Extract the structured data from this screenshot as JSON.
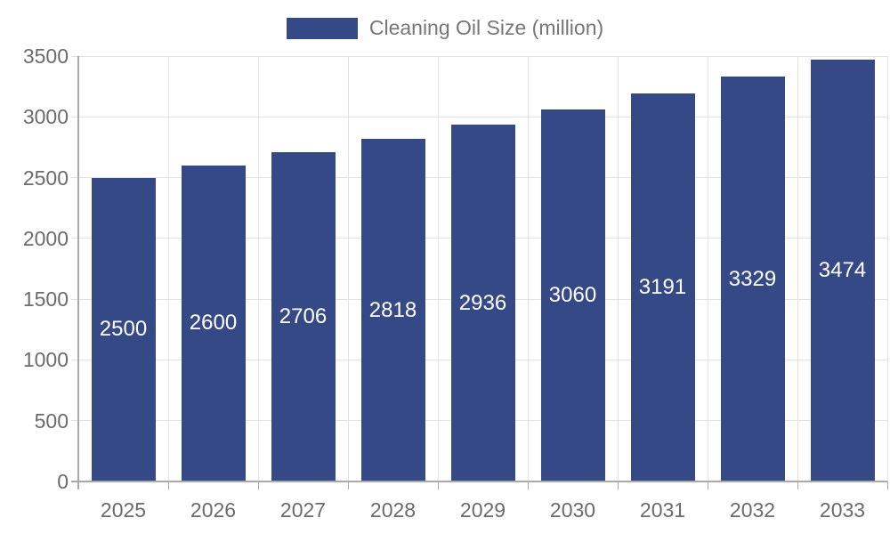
{
  "chart_data": {
    "type": "bar",
    "title": "Cleaning Oil Size (million)",
    "categories": [
      "2025",
      "2026",
      "2027",
      "2028",
      "2029",
      "2030",
      "2031",
      "2032",
      "2033"
    ],
    "values": [
      2500,
      2600,
      2706,
      2818,
      2936,
      3060,
      3191,
      3329,
      3474
    ],
    "series": [
      {
        "name": "Cleaning Oil Size (million)",
        "values": [
          2500,
          2600,
          2706,
          2818,
          2936,
          3060,
          3191,
          3329,
          3474
        ]
      }
    ],
    "xlabel": "",
    "ylabel": "",
    "ylim": [
      0,
      3500
    ],
    "yticks": [
      0,
      500,
      1000,
      1500,
      2000,
      2500,
      3000,
      3500
    ],
    "grid": true,
    "legend_position": "top-center",
    "value_labels": "inside-center",
    "colors": {
      "bar": "#354986",
      "bar_value_text": "#ffffff",
      "axis_text": "#6b6b6b",
      "legend_text": "#767676",
      "grid_line": "#e2e2e2",
      "axis_line": "#a9a9a9"
    }
  }
}
